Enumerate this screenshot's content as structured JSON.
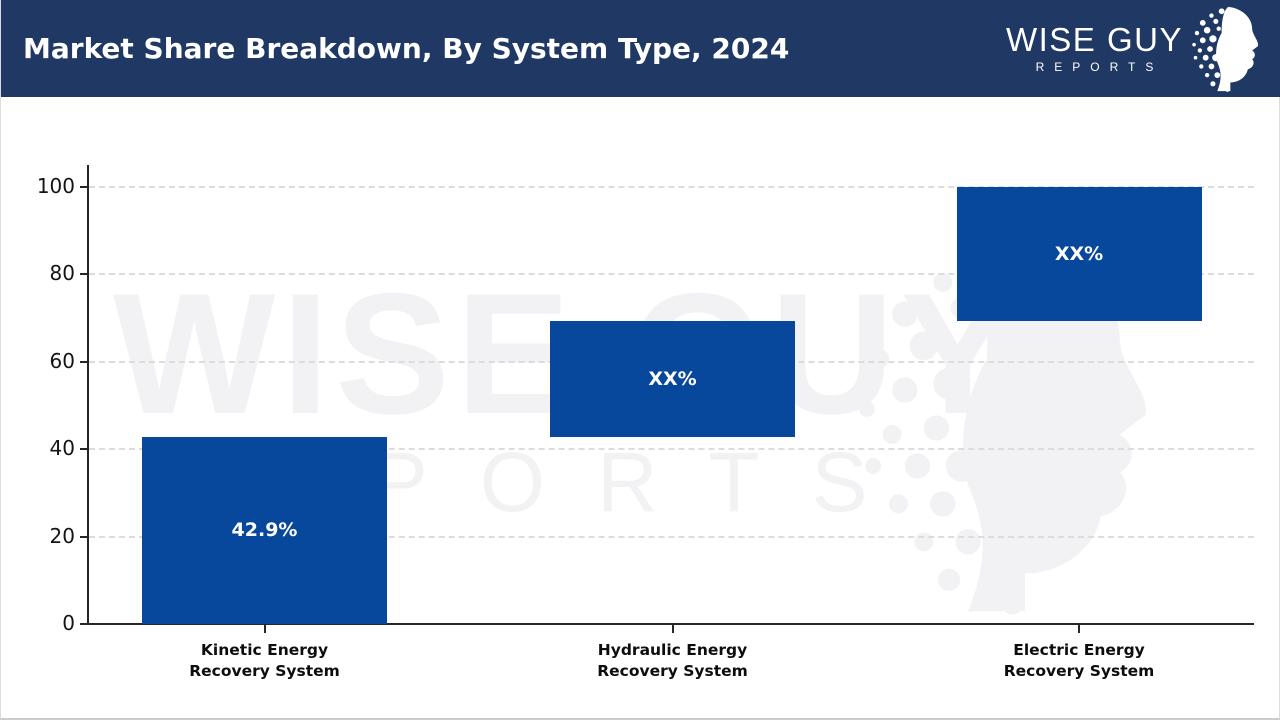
{
  "header": {
    "title": "Market Share Breakdown, By System Type, 2024",
    "logo": {
      "line1": "WISE GUY",
      "line2": "REPORTS"
    }
  },
  "watermark": {
    "line1": "WISE GUY",
    "line2": "REPORTS"
  },
  "chart_data": {
    "type": "bar",
    "variant": "waterfall-floating-bars",
    "title": "Market Share Breakdown, By System Type, 2024",
    "categories": [
      [
        "Kinetic Energy",
        "Recovery System"
      ],
      [
        "Hydraulic Energy",
        "Recovery System"
      ],
      [
        "Electric Energy",
        "Recovery System"
      ]
    ],
    "segments": [
      {
        "category": "Kinetic Energy Recovery System",
        "start": 0,
        "end": 42.9,
        "label": "42.9%"
      },
      {
        "category": "Hydraulic Energy Recovery System",
        "start": 42.9,
        "end": 69.3,
        "label": "XX%"
      },
      {
        "category": "Electric Energy Recovery System",
        "start": 69.3,
        "end": 100,
        "label": "XX%"
      }
    ],
    "ylim": [
      0,
      100
    ],
    "yticks": [
      0,
      20,
      40,
      60,
      80,
      100
    ],
    "grid": "horizontal-dashed",
    "legend": "none",
    "bar_color": "#07479c",
    "bar_label_color": "#ffffff",
    "axis_color": "#262626",
    "gridline_color": "#dcdcdc"
  },
  "colors": {
    "banner_navy": "#1f3864",
    "bar_blue": "#07479c",
    "watermark_gray": "#f2f2f4",
    "background": "#ffffff"
  }
}
